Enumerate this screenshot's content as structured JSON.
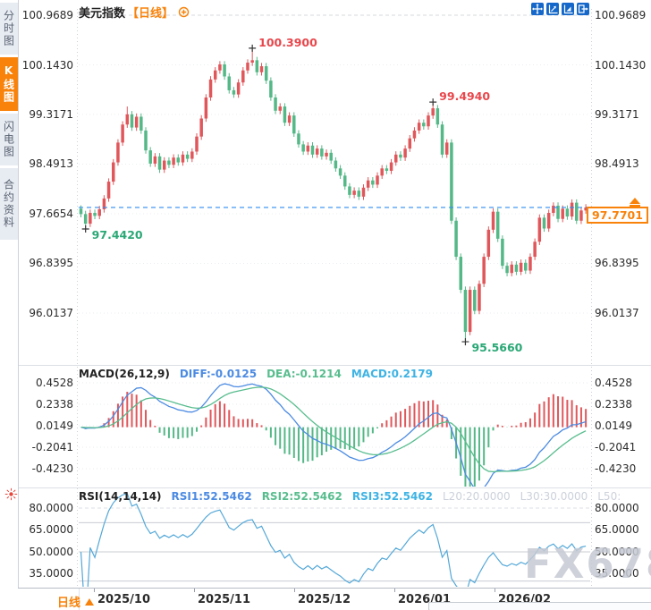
{
  "header": {
    "title": "美元指数",
    "period_tag": "【日线】"
  },
  "sidebar": {
    "tabs": [
      {
        "label": "分时图",
        "active": false
      },
      {
        "label": "K线图",
        "active": true
      },
      {
        "label": "闪电图",
        "active": false
      },
      {
        "label": "合约资料",
        "active": false
      }
    ]
  },
  "toolbar": {
    "icons": [
      "crosshair-move",
      "scale-axis",
      "scale-auto",
      "pan-right"
    ]
  },
  "indicators": {
    "macd": {
      "name": "MACD(26,12,9)",
      "diff": "DIFF:-0.0125",
      "dea": "DEA:-0.1214",
      "macd": "MACD:0.2179"
    },
    "rsi": {
      "name": "RSI(14,14,14)",
      "rsi1": "RSI1:52.5462",
      "rsi2": "RSI2:52.5462",
      "rsi3": "RSI3:52.5462",
      "l20": "L20:20.0000",
      "l30": "L30:30.0000",
      "l50": "L50:"
    }
  },
  "bottom": {
    "period_label": "日线",
    "watermark": "FX678"
  },
  "colors": {
    "up": "#e0575b",
    "down": "#54b887",
    "accent_orange": "#f8820a",
    "icon_blue": "#1568c9",
    "price_line_blue": "#2d8cf0",
    "diff_line": "#4c8be2",
    "dea_line": "#58bd8e",
    "rsi_line": "#54a8d8",
    "annotation_red": "#e8474c",
    "annotation_green": "#2aa876"
  },
  "chart_data": [
    {
      "type": "candlestick",
      "title": "美元指数 日线",
      "x_ticks": [
        "2025/10",
        "2025/11",
        "2025/12",
        "2026/01",
        "2026/02"
      ],
      "y_ticks": [
        "100.9689",
        "100.1430",
        "99.3171",
        "98.4913",
        "97.6654",
        "96.8395",
        "96.0137"
      ],
      "y_tick_values": [
        100.9689,
        100.143,
        99.3171,
        98.4913,
        97.6654,
        96.8395,
        96.0137
      ],
      "current_price": "97.7701",
      "current_price_value": 97.7701,
      "first_open": 97.75,
      "default_wick": 0.055,
      "closes": [
        97.66,
        97.5,
        97.68,
        97.63,
        97.74,
        97.92,
        98.2,
        98.52,
        98.85,
        99.15,
        99.32,
        99.1,
        99.28,
        99.05,
        98.72,
        98.5,
        98.62,
        98.4,
        98.55,
        98.48,
        98.6,
        98.52,
        98.65,
        98.58,
        98.7,
        98.95,
        99.25,
        99.6,
        99.9,
        100.05,
        100.15,
        99.95,
        99.72,
        99.65,
        99.85,
        100.05,
        100.18,
        100.22,
        100.02,
        100.12,
        99.88,
        99.6,
        99.38,
        99.45,
        99.18,
        99.3,
        99.0,
        98.82,
        98.7,
        98.8,
        98.65,
        98.75,
        98.62,
        98.68,
        98.55,
        98.42,
        98.3,
        98.12,
        97.98,
        98.05,
        97.95,
        98.1,
        98.22,
        98.15,
        98.3,
        98.42,
        98.38,
        98.52,
        98.65,
        98.6,
        98.75,
        98.92,
        99.05,
        99.18,
        99.12,
        99.3,
        99.42,
        99.15,
        98.65,
        98.85,
        97.55,
        96.95,
        96.4,
        95.7,
        96.4,
        96.05,
        96.5,
        96.95,
        97.4,
        97.7,
        97.25,
        96.8,
        96.68,
        96.82,
        96.7,
        96.85,
        96.72,
        96.95,
        97.2,
        97.6,
        97.42,
        97.68,
        97.8,
        97.58,
        97.75,
        97.62,
        97.85,
        97.55,
        97.72,
        97.7701
      ],
      "extreme_overrides": {
        "1": {
          "low": 97.442
        },
        "10": {
          "high": 99.45
        },
        "37": {
          "high": 100.39
        },
        "76": {
          "high": 99.494
        },
        "83": {
          "low": 95.566
        }
      },
      "annotations": [
        {
          "index": 37,
          "value": 100.39,
          "text": "100.3900",
          "color": "#e8474c",
          "placement": "above"
        },
        {
          "index": 76,
          "value": 99.494,
          "text": "99.4940",
          "color": "#e8474c",
          "placement": "above"
        },
        {
          "index": 1,
          "value": 97.442,
          "text": "97.4420",
          "color": "#2aa876",
          "placement": "below"
        },
        {
          "index": 83,
          "value": 95.566,
          "text": "95.5660",
          "color": "#2aa876",
          "placement": "below"
        }
      ]
    },
    {
      "type": "macd-histogram",
      "params": [
        26,
        12,
        9
      ],
      "y_ticks": [
        "0.4528",
        "0.2338",
        "0.0149",
        "-0.2041",
        "-0.4230"
      ],
      "y_tick_values": [
        0.4528,
        0.2338,
        0.0149,
        -0.2041,
        -0.423
      ],
      "derived_from": "closes of chart_data[0]"
    },
    {
      "type": "rsi-line",
      "params": [
        14,
        14,
        14
      ],
      "y_ticks": [
        "80.0000",
        "65.0000",
        "50.0000",
        "35.0000"
      ],
      "y_tick_values": [
        80,
        65,
        50,
        35
      ],
      "hlines": [
        80,
        70,
        50,
        30
      ],
      "derived_from": "closes of chart_data[0]"
    }
  ]
}
